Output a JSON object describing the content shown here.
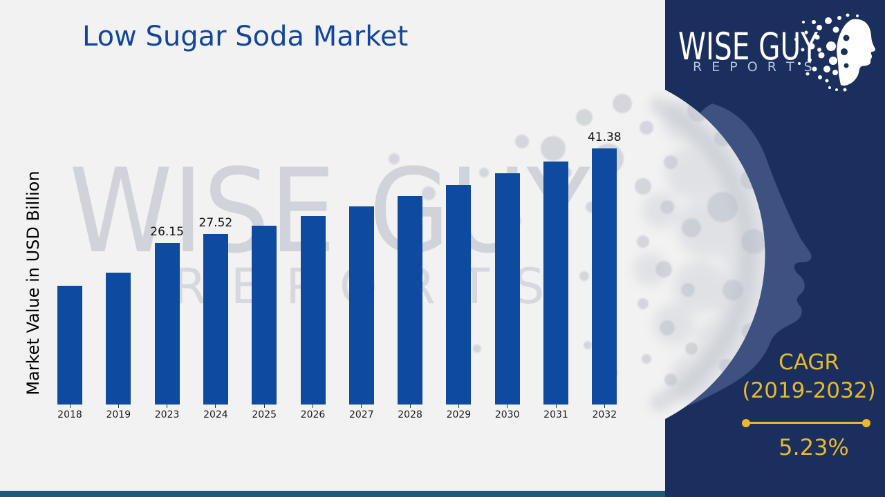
{
  "title": "Low Sugar Soda Market",
  "y_axis_label": "Market Value in USD Billion",
  "watermark": {
    "line1": "WISE GUY",
    "line2": "R E P O R T S"
  },
  "logo": {
    "line1": "WISE GUY",
    "line2": "R E P O R T S"
  },
  "cagr": {
    "label": "CAGR",
    "range": "(2019-2032)",
    "value": "5.23%"
  },
  "colors": {
    "bar": "#0d4aa0",
    "title": "#12469e",
    "panel": "#1b2f5e",
    "panel_face": "#3d5280",
    "accent": "#e9b928",
    "footer": "#1d5a78",
    "background": "#f2f2f2",
    "watermark": "#aab1bd"
  },
  "chart_data": {
    "type": "bar",
    "title": "Low Sugar Soda Market",
    "ylabel": "Market Value in USD Billion",
    "xlabel": "",
    "categories": [
      "2018",
      "2019",
      "2023",
      "2024",
      "2025",
      "2026",
      "2027",
      "2028",
      "2029",
      "2030",
      "2031",
      "2032"
    ],
    "values": [
      19.2,
      21.32,
      26.15,
      27.52,
      28.96,
      30.47,
      32.07,
      33.74,
      35.51,
      37.37,
      39.32,
      41.38
    ],
    "bar_labels": [
      "",
      "",
      "26.15",
      "27.52",
      "",
      "",
      "",
      "",
      "",
      "",
      "",
      "41.38"
    ],
    "ylim": [
      0,
      45
    ],
    "grid": false,
    "legend": false,
    "bar_color": "#0d4aa0"
  }
}
